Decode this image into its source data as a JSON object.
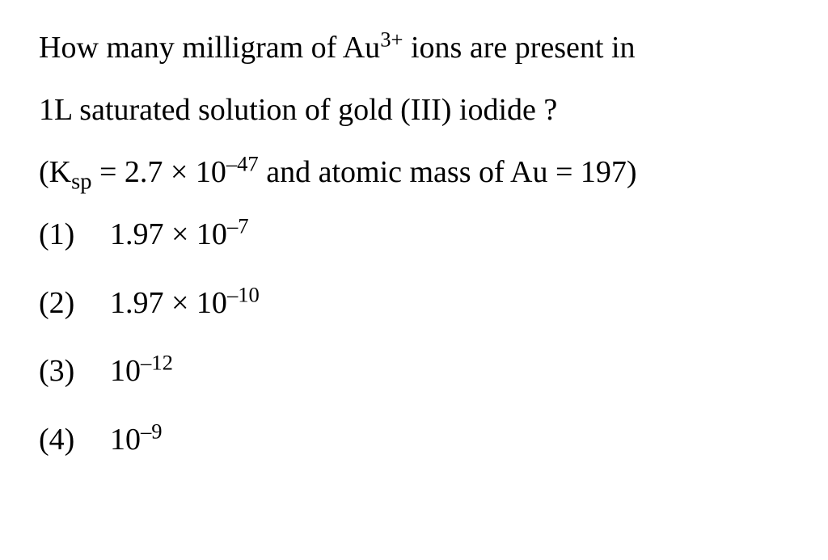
{
  "colors": {
    "background": "#ffffff",
    "text": "#000000"
  },
  "typography": {
    "font_family": "Times New Roman",
    "base_fontsize_pt": 28,
    "option_fontsize_pt": 28
  },
  "question": {
    "line1_pre": "How many milligram of Au",
    "line1_sup": "3+",
    "line1_post": " ions are present in",
    "line2": "1L saturated solution of gold (III) iodide ?",
    "given_pre": "(K",
    "given_sub": "sp",
    "given_mid": " = 2.7 × 10",
    "given_exp": "–47",
    "given_post": " and atomic mass of Au = 197)"
  },
  "options": [
    {
      "num": "(1)",
      "mantissa": "1.97 × 10",
      "exp": "–7"
    },
    {
      "num": "(2)",
      "mantissa": "1.97 × 10",
      "exp": "–10"
    },
    {
      "num": "(3)",
      "mantissa": "10",
      "exp": "–12"
    },
    {
      "num": "(4)",
      "mantissa": "10",
      "exp": "–9"
    }
  ]
}
